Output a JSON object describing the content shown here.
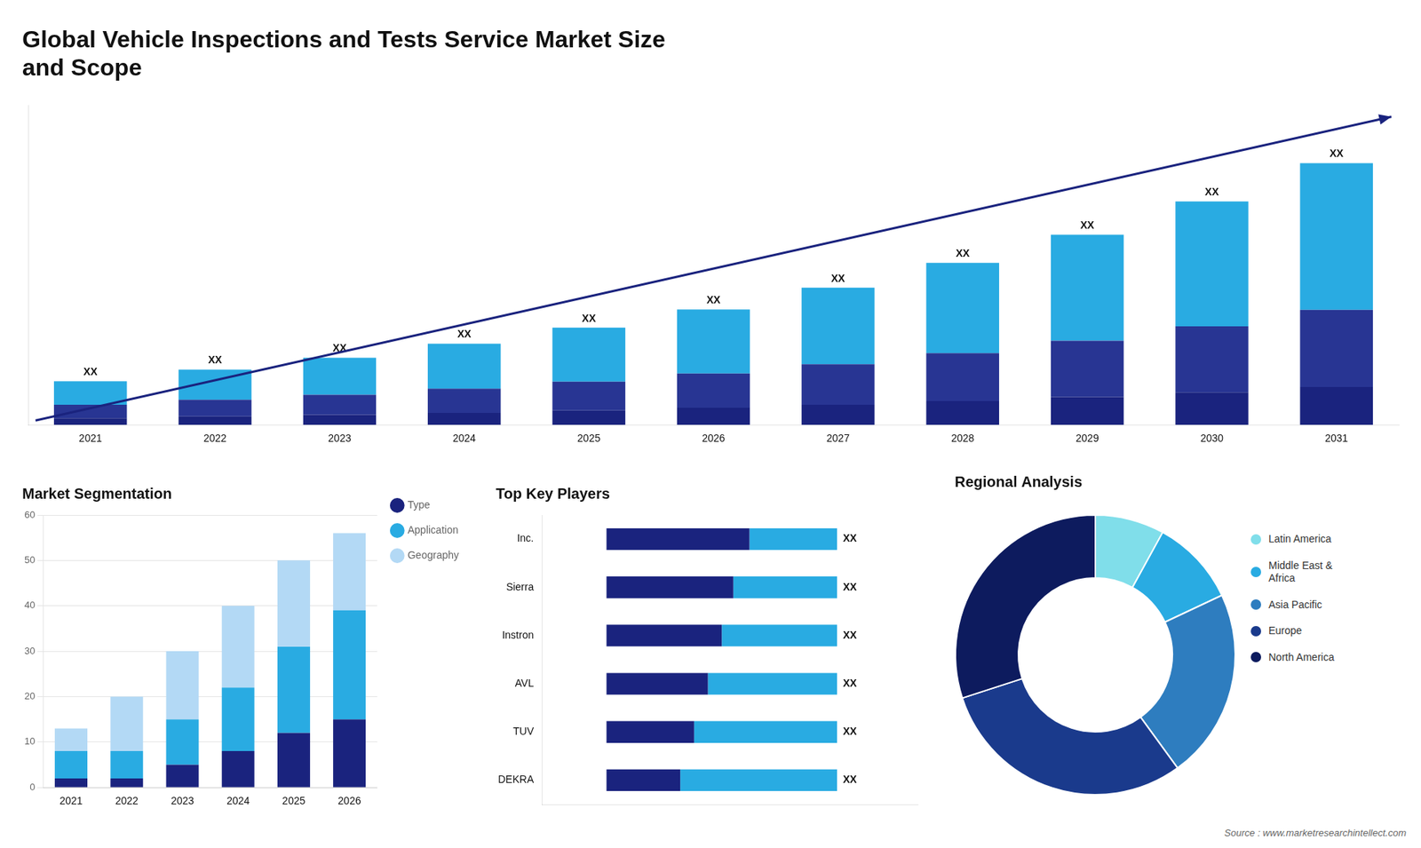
{
  "chart_data": [
    {
      "type": "bar",
      "title": "Global Vehicle Inspections and Tests Service Market Size\nand Scope",
      "stacked": true,
      "categories": [
        2021,
        2022,
        2023,
        2024,
        2025,
        2026,
        2027,
        2028,
        2029,
        2030,
        2031
      ],
      "series": [
        {
          "color": "#1a237e",
          "values": [
            2.0,
            2.5,
            3.0,
            3.6,
            4.3,
            5.1,
            6.0,
            7.1,
            8.3,
            9.7,
            11.3
          ]
        },
        {
          "color": "#283593",
          "values": [
            4.0,
            5.0,
            6.0,
            7.2,
            8.6,
            10.2,
            12.1,
            14.3,
            16.8,
            19.7,
            23.0
          ]
        },
        {
          "color": "#29abe2",
          "values": [
            7.0,
            9.0,
            11.0,
            13.4,
            16.1,
            19.1,
            22.8,
            26.9,
            31.6,
            37.2,
            43.7
          ],
          "data_labels": true,
          "value_labels": [
            "XX",
            "XX",
            "XX",
            "XX",
            "XX",
            "XX",
            "XX",
            "XX",
            "XX",
            "XX",
            "XX"
          ]
        }
      ],
      "ylim": [
        0,
        95.16
      ],
      "tick_labels": "x",
      "grid": false
    },
    {
      "type": "bar",
      "title": "Market Segmentation",
      "stacked": true,
      "categories": [
        2021,
        2022,
        2023,
        2024,
        2025,
        2026
      ],
      "series": [
        {
          "name": "Type",
          "color": "#1a237e",
          "values": [
            2,
            2,
            5,
            8,
            12,
            15
          ]
        },
        {
          "name": "Application",
          "color": "#29abe2",
          "values": [
            6,
            6,
            10,
            14,
            19,
            24
          ]
        },
        {
          "name": "Geography",
          "color": "#b3d9f5",
          "values": [
            5,
            12,
            15,
            18,
            19,
            17
          ]
        }
      ],
      "ylim": [
        0,
        60
      ],
      "yticks": [
        0,
        10,
        20,
        30,
        40,
        50,
        60
      ],
      "grid": "y",
      "legend": "right"
    },
    {
      "type": "bar",
      "title": "Top Key Players",
      "orientation": "horizontal",
      "stacked": true,
      "categories": [
        "Inc.",
        "Sierra",
        "Instron",
        "AVL",
        "TUV",
        "DEKRA"
      ],
      "series": [
        {
          "color": "#1a237e",
          "values": [
            0.62,
            0.55,
            0.5,
            0.44,
            0.38,
            0.32
          ]
        },
        {
          "color": "#29abe2",
          "values": [
            0.38,
            0.45,
            0.5,
            0.56,
            0.62,
            0.68
          ],
          "data_labels": true,
          "value_labels": [
            "XX",
            "XX",
            "XX",
            "XX",
            "XX",
            "XX"
          ]
        }
      ],
      "xlim": [
        -0.28,
        1.35
      ],
      "tick_labels": "y",
      "grid": false
    },
    {
      "type": "doughnut",
      "title": "Regional Analysis",
      "categories": [
        "Latin America",
        "Middle East &\nAfrica",
        "Asia Pacific",
        "Europe",
        "North America"
      ],
      "values": [
        0.08,
        0.1,
        0.22,
        0.3,
        0.3
      ],
      "colors": [
        "#80deea",
        "#29abe2",
        "#2e7dbf",
        "#1a3a8c",
        "#0d1b5e"
      ],
      "legend": "right",
      "annotations": [
        "Source : www.marketresearchintellect.com"
      ]
    }
  ]
}
